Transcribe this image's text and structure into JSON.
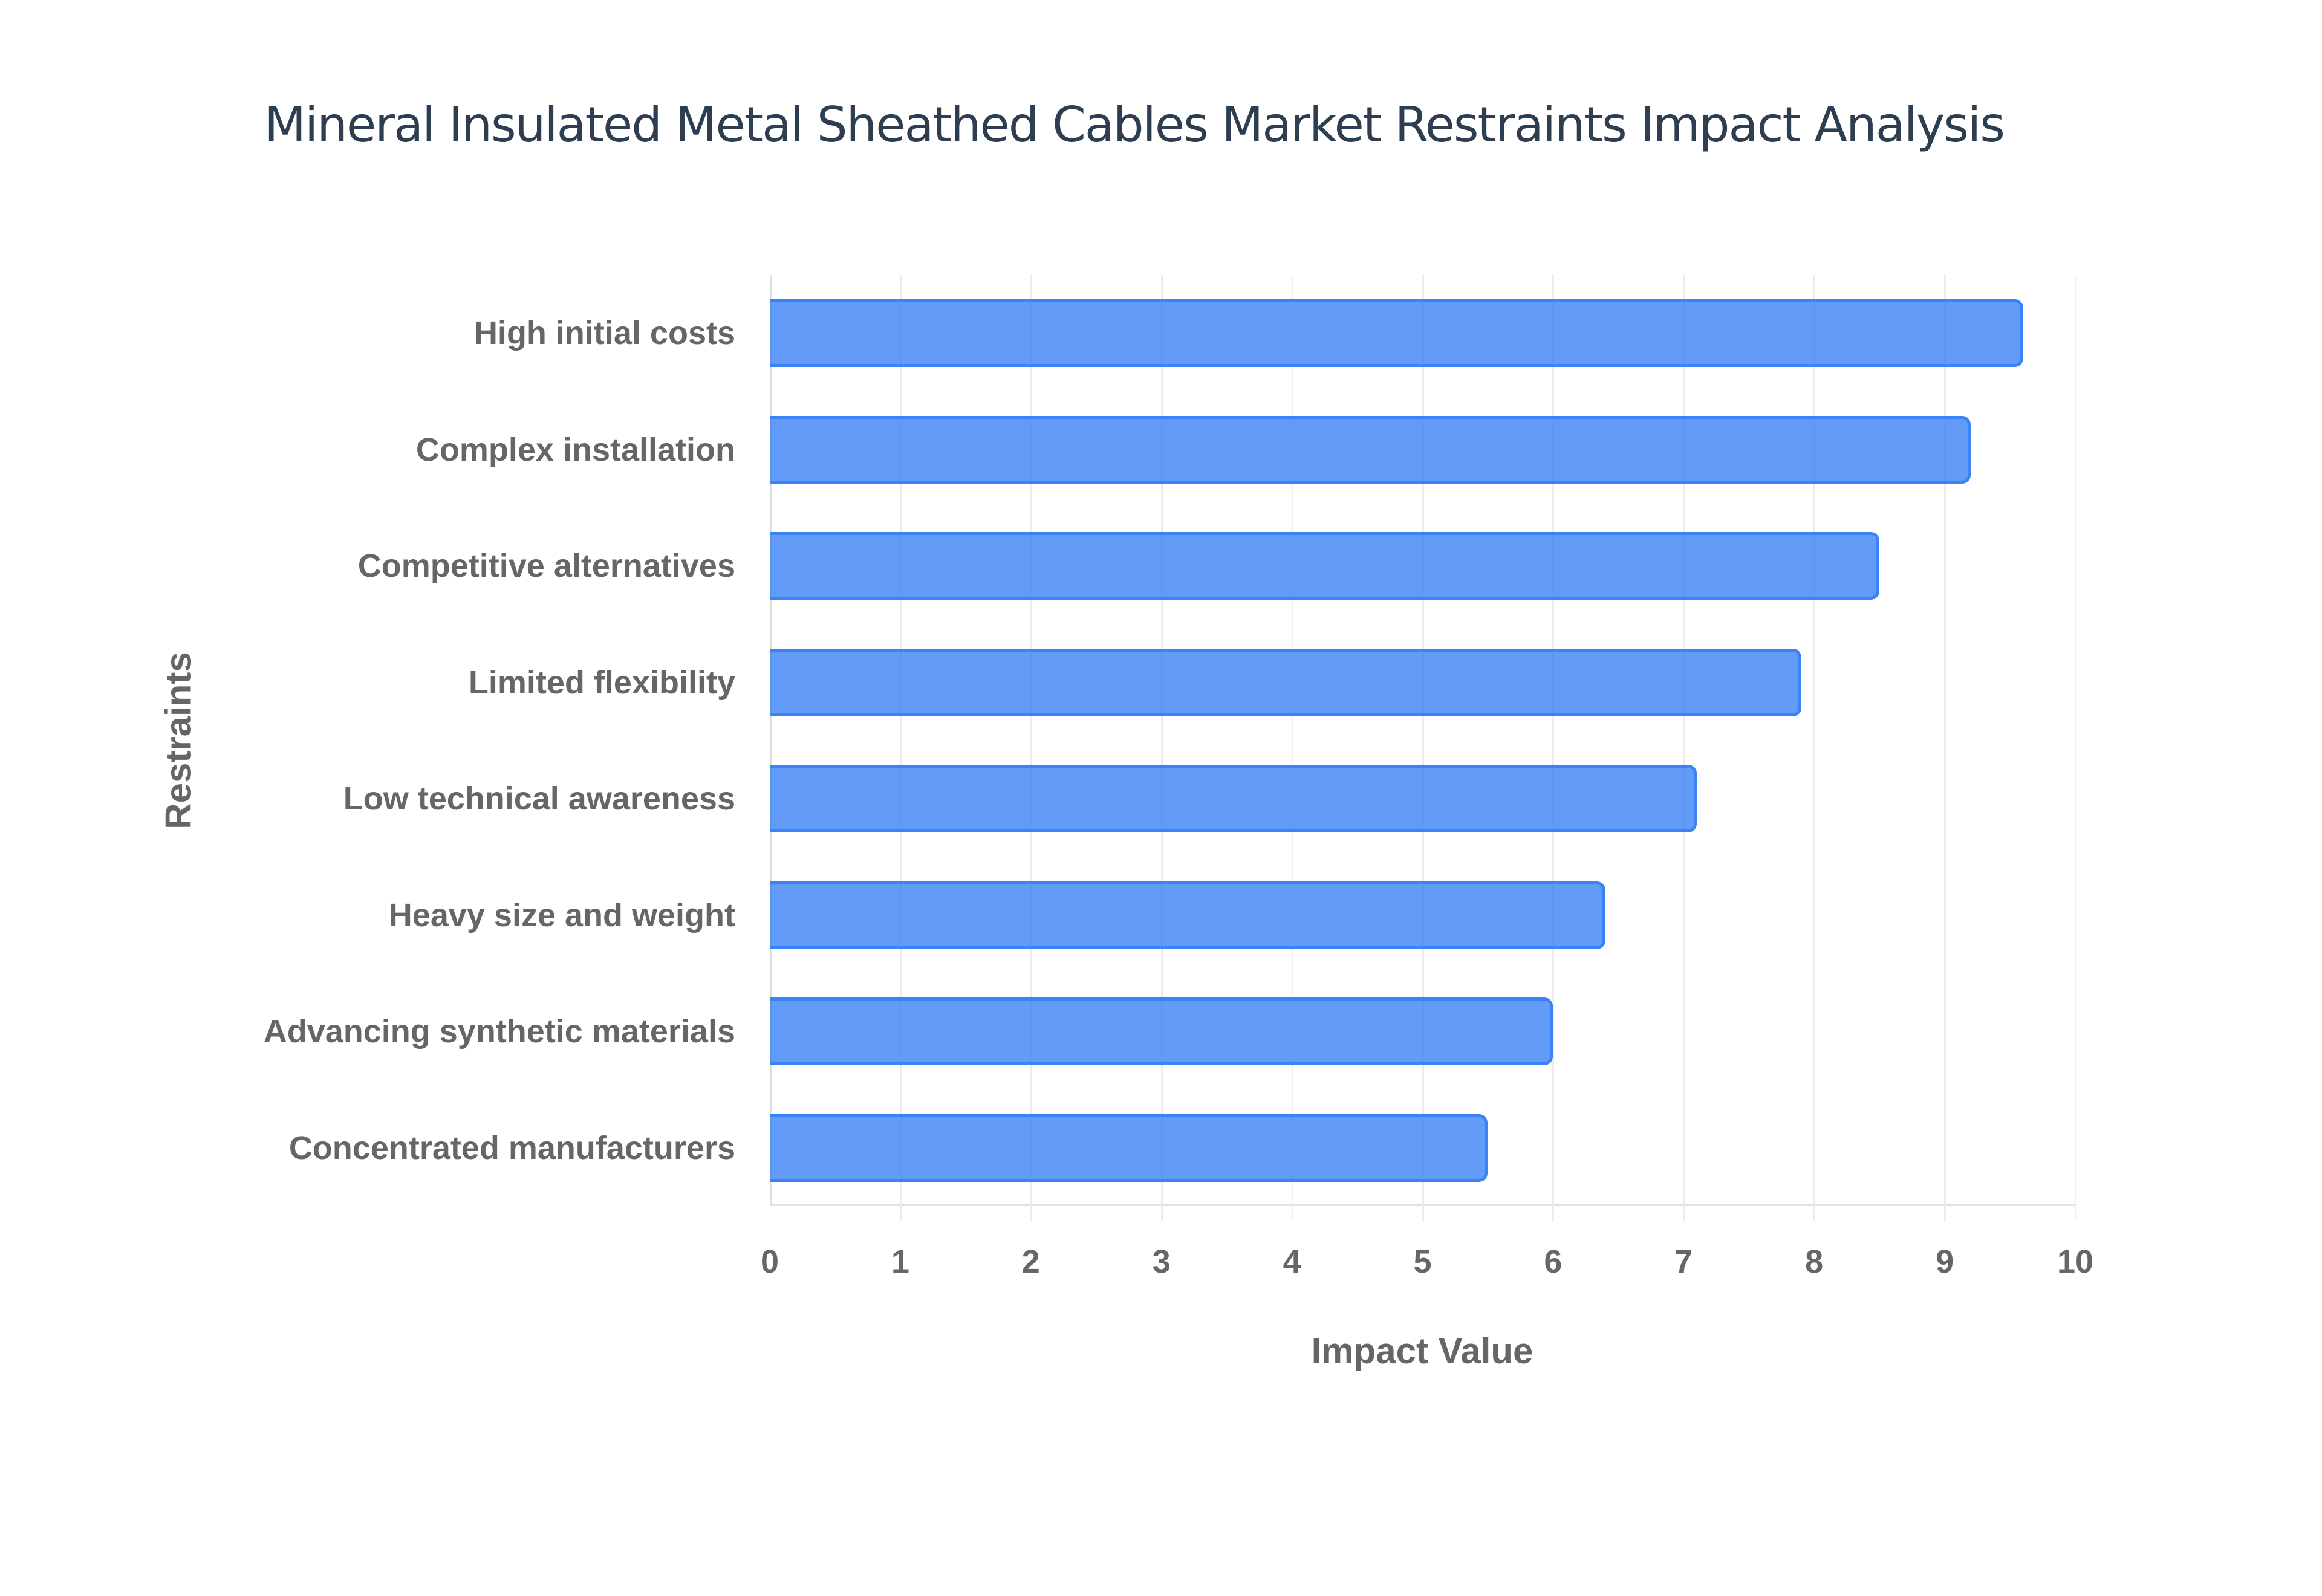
{
  "chart_data": {
    "type": "bar",
    "orientation": "horizontal",
    "title": "Mineral Insulated Metal Sheathed Cables Market Restraints Impact Analysis",
    "xlabel": "Impact Value",
    "ylabel": "Restraints",
    "categories": [
      "High initial costs",
      "Complex installation",
      "Competitive alternatives",
      "Limited flexibility",
      "Low technical awareness",
      "Heavy size and weight",
      "Advancing synthetic materials",
      "Concentrated manufacturers"
    ],
    "values": [
      9.6,
      9.2,
      8.5,
      7.9,
      7.1,
      6.4,
      6.0,
      5.5
    ],
    "xlim": [
      0,
      10
    ],
    "xticks": [
      "0",
      "1",
      "2",
      "3",
      "4",
      "5",
      "6",
      "7",
      "8",
      "9",
      "10"
    ],
    "grid": true,
    "legend": null,
    "colors": {
      "bar_fill": "#60a5fa",
      "bar_border": "#3b82f6",
      "title": "#2c3e50",
      "axis_text": "#666666"
    }
  }
}
